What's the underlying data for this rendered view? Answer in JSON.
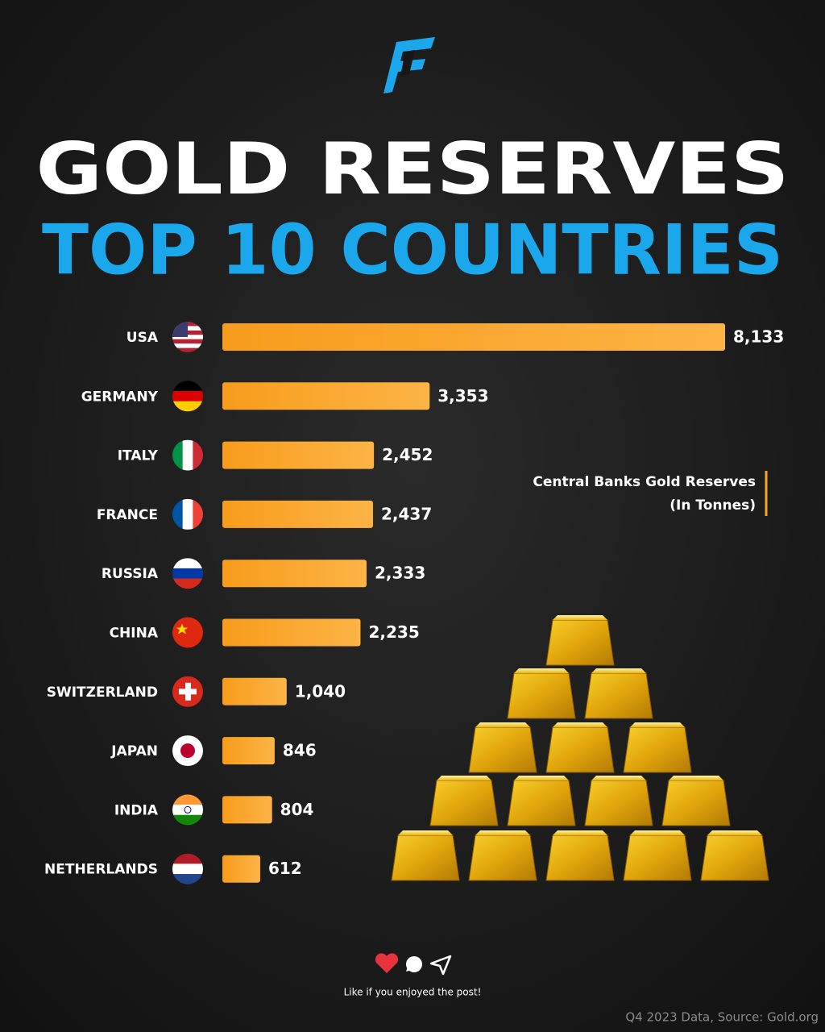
{
  "chart_data": {
    "type": "bar",
    "orientation": "horizontal",
    "title": "GOLD RESERVES",
    "subtitle": "TOP 10 COUNTRIES",
    "categories": [
      "USA",
      "GERMANY",
      "ITALY",
      "FRANCE",
      "RUSSIA",
      "CHINA",
      "SWITZERLAND",
      "JAPAN",
      "INDIA",
      "NETHERLANDS"
    ],
    "values": [
      8133,
      3353,
      2452,
      2437,
      2333,
      2235,
      1040,
      846,
      804,
      612
    ],
    "value_labels": [
      "8,133",
      "3,353",
      "2,452",
      "2,437",
      "2,333",
      "2,235",
      "1,040",
      "846",
      "804",
      "612"
    ],
    "color": "#f9a526",
    "annotation": [
      "Central Banks Gold Reserves",
      "(In Tonnes)"
    ],
    "footer": "Like if you enjoyed the post!",
    "source": "Q4 2023 Data, Source: Gold.org"
  }
}
